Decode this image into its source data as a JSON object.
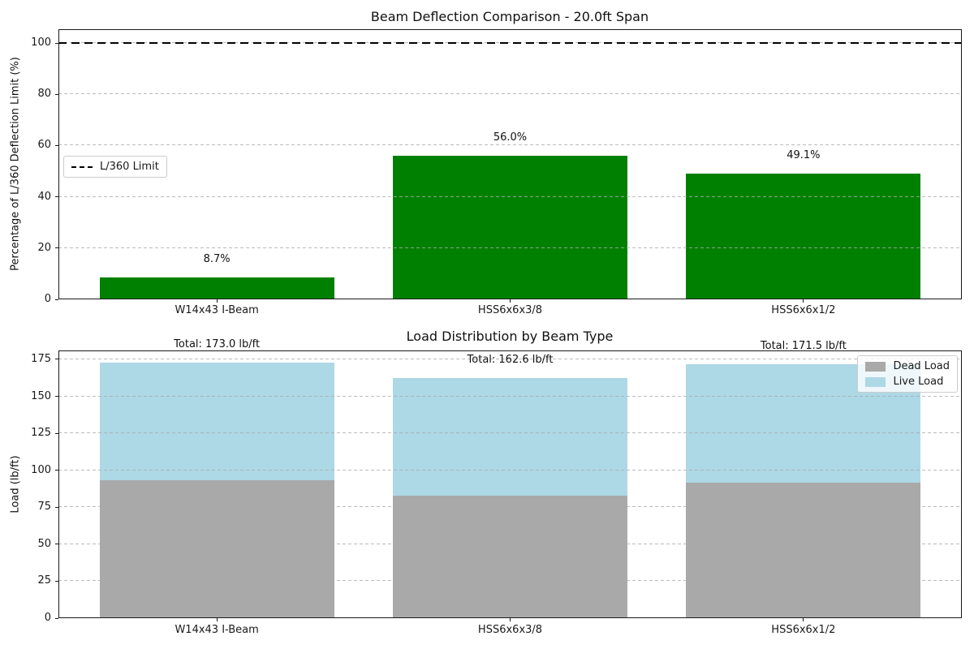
{
  "figure": {
    "background": "#ffffff"
  },
  "chart_data": [
    {
      "type": "bar",
      "title": "Beam Deflection Comparison - 20.0ft Span",
      "xlabel": "",
      "ylabel": "Percentage of L/360 Deflection Limit (%)",
      "categories": [
        "W14x43 I-Beam",
        "HSS6x6x3/8",
        "HSS6x6x1/2"
      ],
      "values": [
        8.7,
        56.0,
        49.1
      ],
      "value_labels": [
        "8.7%",
        "56.0%",
        "49.1%"
      ],
      "bar_color": "#008000",
      "yticks": [
        0,
        20,
        40,
        60,
        80,
        100
      ],
      "ylim": [
        0,
        105.4
      ],
      "grid": "dashed-y",
      "limit_line": {
        "value": 100,
        "color": "#000000",
        "style": "dashed",
        "label": "L/360 Limit"
      },
      "legend": {
        "position": "center-left",
        "entries": [
          {
            "label": "L/360 Limit",
            "swatch": "dashed-line",
            "color": "#000000"
          }
        ]
      }
    },
    {
      "type": "bar",
      "stacked": true,
      "title": "Load Distribution by Beam Type",
      "xlabel": "",
      "ylabel": "Load (lb/ft)",
      "categories": [
        "W14x43 I-Beam",
        "HSS6x6x3/8",
        "HSS6x6x1/2"
      ],
      "series": [
        {
          "name": "Dead Load",
          "color": "#a9a9a9",
          "values": [
            93.0,
            82.6,
            91.5
          ]
        },
        {
          "name": "Live Load",
          "color": "#add8e6",
          "values": [
            80.0,
            80.0,
            80.0
          ]
        }
      ],
      "totals": [
        173.0,
        162.6,
        171.5
      ],
      "total_labels": [
        "Total: 173.0 lb/ft",
        "Total: 162.6 lb/ft",
        "Total: 171.5 lb/ft"
      ],
      "yticks": [
        0,
        25,
        50,
        75,
        100,
        125,
        150,
        175
      ],
      "ylim": [
        0,
        181
      ],
      "grid": "dashed-y",
      "legend": {
        "position": "top-right",
        "entries": [
          {
            "label": "Dead Load",
            "swatch": "patch",
            "color": "#a9a9a9"
          },
          {
            "label": "Live Load",
            "swatch": "patch",
            "color": "#add8e6"
          }
        ]
      }
    }
  ]
}
